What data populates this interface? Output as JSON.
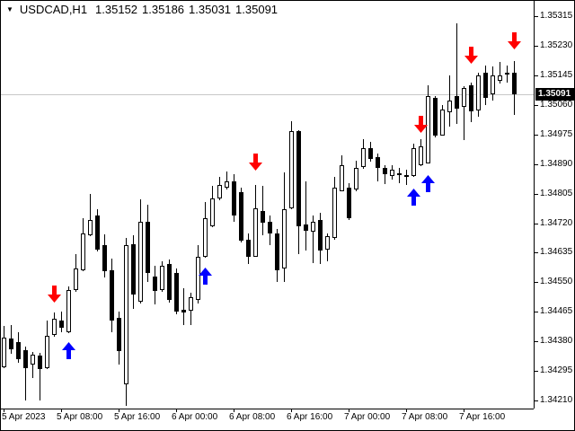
{
  "header": {
    "dropdown_icon": "▼",
    "symbol": "USDCAD,H1",
    "open": "1.35152",
    "high": "1.35186",
    "low": "1.35031",
    "close": "1.35091"
  },
  "chart_data": {
    "type": "candlestick",
    "title": "USDCAD,H1",
    "symbol": "USDCAD",
    "period": "H1",
    "ylim": [
      1.3421,
      1.35315
    ],
    "grid": false,
    "y_axis": {
      "labels": [
        "1.35315",
        "1.35230",
        "1.35145",
        "1.35060",
        "1.34975",
        "1.34890",
        "1.34805",
        "1.34720",
        "1.34635",
        "1.34550",
        "1.34465",
        "1.34380",
        "1.34295",
        "1.34210"
      ]
    },
    "x_axis": {
      "ticks": [
        {
          "label": "5 Apr 2023",
          "candle": 0
        },
        {
          "label": "5 Apr 08:00",
          "candle": 8
        },
        {
          "label": "5 Apr 16:00",
          "candle": 16
        },
        {
          "label": "6 Apr 00:00",
          "candle": 24
        },
        {
          "label": "6 Apr 08:00",
          "candle": 32
        },
        {
          "label": "6 Apr 16:00",
          "candle": 40
        },
        {
          "label": "7 Apr 00:00",
          "candle": 48
        },
        {
          "label": "7 Apr 08:00",
          "candle": 56
        },
        {
          "label": "7 Apr 16:00",
          "candle": 64
        }
      ]
    },
    "current_price": {
      "value": "1.35091",
      "price": 1.35091
    },
    "colors": {
      "bull_body": "#FFFFFF",
      "bear_body": "#000000",
      "outline": "#000000",
      "wick": "#000000",
      "arrow_up": "#0000FF",
      "arrow_down": "#FF0000",
      "price_line": "#C8C8C8",
      "price_box_bg": "#000000",
      "price_box_text": "#FFFFFF",
      "axis_text": "#000000",
      "background": "#FFFFFF"
    },
    "candles_tohlc": [
      [
        "2023-04-05 00:00",
        1.34305,
        1.34424,
        1.34303,
        1.3439
      ],
      [
        "2023-04-05 01:00",
        1.34387,
        1.34427,
        1.34345,
        1.34355
      ],
      [
        "2023-04-05 02:00",
        1.34379,
        1.34406,
        1.34318,
        1.34329
      ],
      [
        "2023-04-05 03:00",
        1.34355,
        1.34366,
        1.34211,
        1.34303
      ],
      [
        "2023-04-05 04:00",
        1.34313,
        1.3435,
        1.34274,
        1.34342
      ],
      [
        "2023-04-05 05:00",
        1.3434,
        1.34347,
        1.34211,
        1.343
      ],
      [
        "2023-04-05 06:00",
        1.34303,
        1.3444,
        1.343,
        1.34395
      ],
      [
        "2023-04-05 07:00",
        1.34398,
        1.34463,
        1.34392,
        1.34445
      ],
      [
        "2023-04-05 08:00",
        1.3444,
        1.34466,
        1.34406,
        1.34419
      ],
      [
        "2023-04-05 09:00",
        1.34406,
        1.34537,
        1.34403,
        1.34527
      ],
      [
        "2023-04-05 10:00",
        1.34527,
        1.34632,
        1.34524,
        1.3459
      ],
      [
        "2023-04-05 11:00",
        1.34585,
        1.34735,
        1.34582,
        1.3469
      ],
      [
        "2023-04-05 12:00",
        1.34685,
        1.34804,
        1.34682,
        1.3473
      ],
      [
        "2023-04-05 13:00",
        1.34743,
        1.34761,
        1.3464,
        1.34645
      ],
      [
        "2023-04-05 14:00",
        1.34656,
        1.34688,
        1.34564,
        1.34582
      ],
      [
        "2023-04-05 15:00",
        1.34585,
        1.34619,
        1.34408,
        1.3444
      ],
      [
        "2023-04-05 16:00",
        1.34448,
        1.34466,
        1.34313,
        1.34353
      ],
      [
        "2023-04-05 17:00",
        1.34255,
        1.34677,
        1.34195,
        1.34656
      ],
      [
        "2023-04-05 18:00",
        1.34659,
        1.34685,
        1.34474,
        1.34514
      ],
      [
        "2023-04-05 19:00",
        1.34493,
        1.34788,
        1.34487,
        1.34724
      ],
      [
        "2023-04-05 20:00",
        1.34724,
        1.34774,
        1.34553,
        1.34577
      ],
      [
        "2023-04-05 21:00",
        1.34566,
        1.34598,
        1.34487,
        1.34524
      ],
      [
        "2023-04-05 22:00",
        1.34527,
        1.34611,
        1.34522,
        1.34598
      ],
      [
        "2023-04-05 23:00",
        1.34603,
        1.34616,
        1.34493,
        1.345
      ],
      [
        "2023-04-06 00:00",
        1.34577,
        1.3459,
        1.34458,
        1.34466
      ],
      [
        "2023-04-06 01:00",
        1.34471,
        1.34532,
        1.34427,
        1.34464
      ],
      [
        "2023-04-06 02:00",
        1.34466,
        1.34519,
        1.34427,
        1.34506
      ],
      [
        "2023-04-06 03:00",
        1.345,
        1.34656,
        1.34487,
        1.34624
      ],
      [
        "2023-04-06 04:00",
        1.34624,
        1.34782,
        1.34622,
        1.34735
      ],
      [
        "2023-04-06 05:00",
        1.34711,
        1.34827,
        1.34709,
        1.3479
      ],
      [
        "2023-04-06 06:00",
        1.3479,
        1.34854,
        1.34788,
        1.3483
      ],
      [
        "2023-04-06 07:00",
        1.34822,
        1.3487,
        1.34819,
        1.34841
      ],
      [
        "2023-04-06 08:00",
        1.34841,
        1.34862,
        1.34724,
        1.34743
      ],
      [
        "2023-04-06 09:00",
        1.34809,
        1.34822,
        1.34664,
        1.34669
      ],
      [
        "2023-04-06 10:00",
        1.34672,
        1.3469,
        1.34603,
        1.34624
      ],
      [
        "2023-04-06 11:00",
        1.34624,
        1.3483,
        1.34622,
        1.34764
      ],
      [
        "2023-04-06 12:00",
        1.34756,
        1.34827,
        1.34685,
        1.34722
      ],
      [
        "2023-04-06 13:00",
        1.34724,
        1.34743,
        1.34659,
        1.3469
      ],
      [
        "2023-04-06 14:00",
        1.3469,
        1.34703,
        1.34551,
        1.34585
      ],
      [
        "2023-04-06 15:00",
        1.3459,
        1.34867,
        1.34553,
        1.34761
      ],
      [
        "2023-04-06 16:00",
        1.34764,
        1.35014,
        1.34761,
        1.34985
      ],
      [
        "2023-04-06 17:00",
        1.34985,
        1.34988,
        1.34632,
        1.34711
      ],
      [
        "2023-04-06 18:00",
        1.34717,
        1.34841,
        1.34643,
        1.34698
      ],
      [
        "2023-04-06 19:00",
        1.34695,
        1.34743,
        1.34606,
        1.34724
      ],
      [
        "2023-04-06 20:00",
        1.3473,
        1.34751,
        1.34603,
        1.34643
      ],
      [
        "2023-04-06 21:00",
        1.34643,
        1.3469,
        1.34611,
        1.34682
      ],
      [
        "2023-04-06 22:00",
        1.34677,
        1.34854,
        1.34674,
        1.34822
      ],
      [
        "2023-04-06 23:00",
        1.34814,
        1.34914,
        1.34812,
        1.34888
      ],
      [
        "2023-04-07 00:00",
        1.34822,
        1.34835,
        1.3473,
        1.34735
      ],
      [
        "2023-04-07 01:00",
        1.34817,
        1.34901,
        1.34814,
        1.3488
      ],
      [
        "2023-04-07 02:00",
        1.3488,
        1.34962,
        1.34877,
        1.34935
      ],
      [
        "2023-04-07 03:00",
        1.34935,
        1.34954,
        1.34898,
        1.34904
      ],
      [
        "2023-04-07 04:00",
        1.34909,
        1.3492,
        1.34841,
        1.34877
      ],
      [
        "2023-04-07 05:00",
        1.3488,
        1.34888,
        1.34835,
        1.34862
      ],
      [
        "2023-04-07 06:00",
        1.34856,
        1.34888,
        1.34846,
        1.34875
      ],
      [
        "2023-04-07 07:00",
        1.34864,
        1.3488,
        1.34835,
        1.34859
      ],
      [
        "2023-04-07 08:00",
        1.34854,
        1.34875,
        1.3483,
        1.34859
      ],
      [
        "2023-04-07 09:00",
        1.34856,
        1.34949,
        1.34854,
        1.34935
      ],
      [
        "2023-04-07 10:00",
        1.34888,
        1.34962,
        1.34885,
        1.34941
      ],
      [
        "2023-04-07 11:00",
        1.34893,
        1.35117,
        1.34891,
        1.35086
      ],
      [
        "2023-04-07 12:00",
        1.3508,
        1.35086,
        1.34967,
        1.34972
      ],
      [
        "2023-04-07 13:00",
        1.34972,
        1.35059,
        1.3497,
        1.35046
      ],
      [
        "2023-04-07 14:00",
        1.35038,
        1.35146,
        1.34999,
        1.35072
      ],
      [
        "2023-04-07 15:00",
        1.35086,
        1.35296,
        1.35007,
        1.35049
      ],
      [
        "2023-04-07 16:00",
        1.35054,
        1.35115,
        1.34959,
        1.35109
      ],
      [
        "2023-04-07 17:00",
        1.35117,
        1.35125,
        1.35012,
        1.35041
      ],
      [
        "2023-04-07 18:00",
        1.35046,
        1.35152,
        1.35025,
        1.35146
      ],
      [
        "2023-04-07 19:00",
        1.35152,
        1.35173,
        1.35059,
        1.3508
      ],
      [
        "2023-04-07 20:00",
        1.35091,
        1.3517,
        1.35072,
        1.35146
      ],
      [
        "2023-04-07 21:00",
        1.3513,
        1.35183,
        1.3512,
        1.35146
      ],
      [
        "2023-04-07 22:00",
        1.35154,
        1.35173,
        1.35125,
        1.35149
      ],
      [
        "2023-04-07 23:00",
        1.35152,
        1.35186,
        1.35031,
        1.35091
      ]
    ],
    "signals": [
      {
        "candle": 7,
        "type": "sell",
        "direction": "down",
        "price": 1.34516
      },
      {
        "candle": 9,
        "type": "buy",
        "direction": "up",
        "price": 1.34354
      },
      {
        "candle": 28,
        "type": "buy",
        "direction": "up",
        "price": 1.34568
      },
      {
        "candle": 35,
        "type": "sell",
        "direction": "down",
        "price": 1.34895
      },
      {
        "candle": 57,
        "type": "buy",
        "direction": "up",
        "price": 1.34796
      },
      {
        "candle": 58,
        "type": "sell",
        "direction": "down",
        "price": 1.35005
      },
      {
        "candle": 59,
        "type": "buy",
        "direction": "up",
        "price": 1.34835
      },
      {
        "candle": 65,
        "type": "sell",
        "direction": "down",
        "price": 1.35204
      },
      {
        "candle": 71,
        "type": "sell",
        "direction": "down",
        "price": 1.35246
      }
    ],
    "legend_position": "none"
  }
}
